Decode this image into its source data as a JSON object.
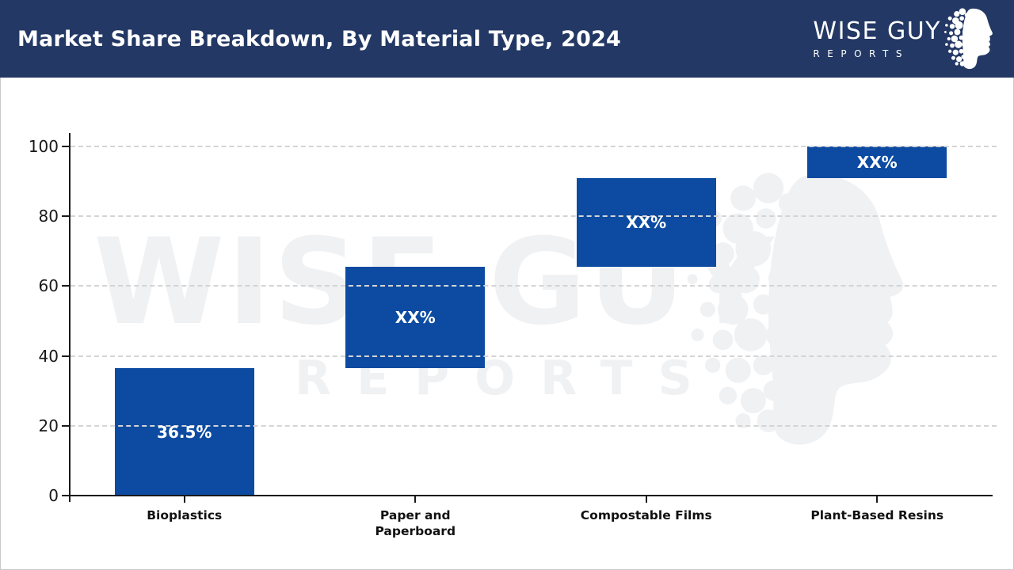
{
  "header": {
    "title": "Market Share Breakdown, By Material Type, 2024",
    "bg_color": "#233864"
  },
  "logo": {
    "name": "WISE GUY",
    "subtitle": "REPORTS"
  },
  "watermark": {
    "name": "WISE GUY",
    "subtitle": "REPORTS"
  },
  "chart_data": {
    "type": "bar",
    "variant": "floating-waterfall",
    "title": "Market Share Breakdown, By Material Type, 2024",
    "categories": [
      "Bioplastics",
      "Paper and Paperboard",
      "Compostable Films",
      "Plant-Based Resins"
    ],
    "category_display": [
      "Bioplastics",
      "Paper and\nPaperboard",
      "Compostable Films",
      "Plant-Based Resins"
    ],
    "series": [
      {
        "name": "Market share (%)",
        "segments": [
          {
            "category": "Bioplastics",
            "start": 0,
            "end": 36.5,
            "label": "36.5%"
          },
          {
            "category": "Paper and Paperboard",
            "start": 36.5,
            "end": 65.5,
            "label": "XX%"
          },
          {
            "category": "Compostable Films",
            "start": 65.5,
            "end": 91,
            "label": "XX%"
          },
          {
            "category": "Plant-Based Resins",
            "start": 91,
            "end": 100,
            "label": "XX%"
          }
        ]
      }
    ],
    "xlabel": "",
    "ylabel": "",
    "ylim": [
      0,
      100
    ],
    "yticks": [
      0,
      20,
      40,
      60,
      80,
      100
    ],
    "grid": "horizontal-dashed",
    "legend": "none",
    "bar_color": "#0c4ba1",
    "bar_label_color": "#ffffff",
    "axis_color": "#191919",
    "gridline_color": "#d4d4d4"
  }
}
